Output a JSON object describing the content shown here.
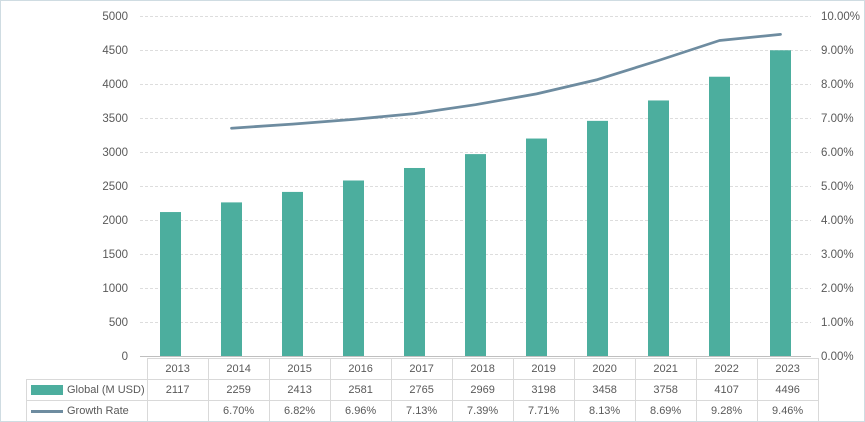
{
  "chart_data": {
    "type": "combo",
    "categories": [
      "2013",
      "2014",
      "2015",
      "2016",
      "2017",
      "2018",
      "2019",
      "2020",
      "2021",
      "2022",
      "2023"
    ],
    "series": [
      {
        "name": "Global (M USD)",
        "chart": "bar",
        "axis": "left",
        "values": [
          2117,
          2259,
          2413,
          2581,
          2765,
          2969,
          3198,
          3458,
          3758,
          4107,
          4496
        ],
        "display": [
          "2117",
          "2259",
          "2413",
          "2581",
          "2765",
          "2969",
          "3198",
          "3458",
          "3758",
          "4107",
          "4496"
        ]
      },
      {
        "name": "Growth Rate",
        "chart": "line",
        "axis": "right",
        "values": [
          null,
          6.7,
          6.82,
          6.96,
          7.13,
          7.39,
          7.71,
          8.13,
          8.69,
          9.28,
          9.46
        ],
        "display": [
          "",
          "6.70%",
          "6.82%",
          "6.96%",
          "7.13%",
          "7.39%",
          "7.71%",
          "8.13%",
          "8.69%",
          "9.28%",
          "9.46%"
        ]
      }
    ],
    "left_axis": {
      "min": 0,
      "max": 5000,
      "step": 500,
      "tick_labels": [
        "0",
        "500",
        "1000",
        "1500",
        "2000",
        "2500",
        "3000",
        "3500",
        "4000",
        "4500",
        "5000"
      ]
    },
    "right_axis": {
      "min": 0,
      "max": 10,
      "step": 1,
      "tick_labels": [
        "0.00%",
        "1.00%",
        "2.00%",
        "3.00%",
        "4.00%",
        "5.00%",
        "6.00%",
        "7.00%",
        "8.00%",
        "9.00%",
        "10.00%"
      ]
    },
    "grid": true,
    "legend_position": "table-left"
  },
  "colors": {
    "bar": "#4CAE9E",
    "line": "#6E8CA0",
    "text": "#595959",
    "grid": "#dddddd",
    "axis": "#bfbfbf",
    "table_border": "#d9d9d9"
  }
}
